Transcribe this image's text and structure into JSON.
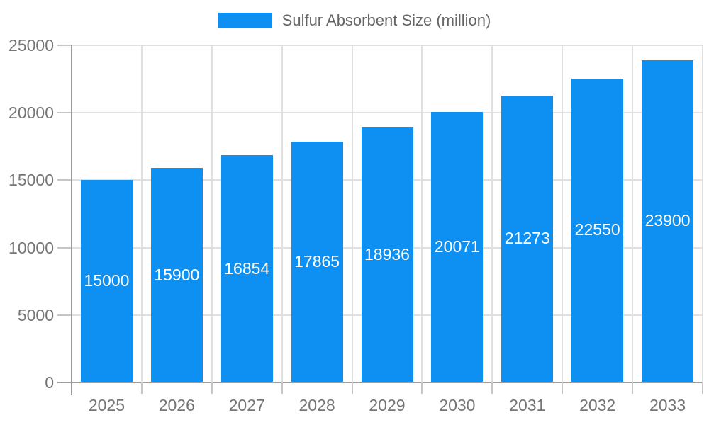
{
  "legend": {
    "label": "Sulfur Absorbent Size (million)"
  },
  "chart_data": {
    "type": "bar",
    "title": "Sulfur Absorbent Size (million)",
    "series_name": "Sulfur Absorbent Size (million)",
    "categories": [
      "2025",
      "2026",
      "2027",
      "2028",
      "2029",
      "2030",
      "2031",
      "2032",
      "2033"
    ],
    "values": [
      15000,
      15900,
      16854,
      17865,
      18936,
      20071,
      21273,
      22550,
      23900
    ],
    "xlabel": "",
    "ylabel": "",
    "ylim": [
      0,
      25000
    ],
    "yticks": [
      0,
      5000,
      10000,
      15000,
      20000,
      25000
    ],
    "grid": true,
    "legend_position": "top",
    "value_label_position": "inside-center"
  },
  "colors": {
    "bar": "#0e90f2",
    "axis": "#9e9e9e",
    "grid": "#e0e0e0",
    "tick": "#c6c6c6",
    "axis_label_text": "#757575",
    "value_label_text": "#ffffff",
    "legend_text": "#666666",
    "background": "#ffffff"
  }
}
